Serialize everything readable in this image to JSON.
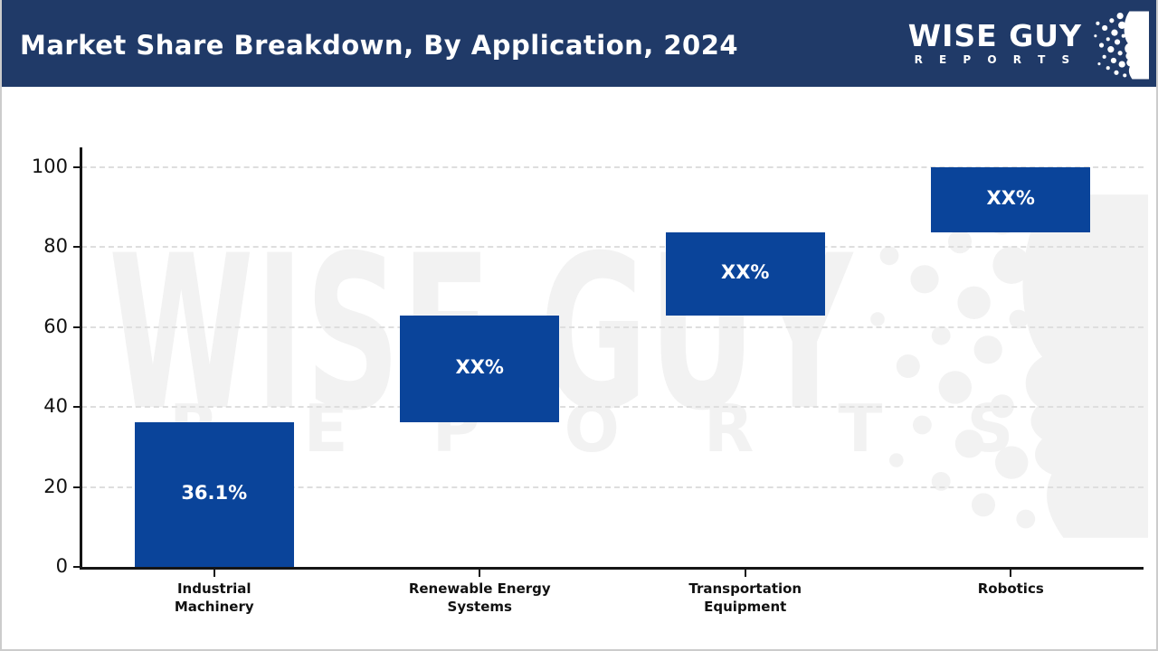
{
  "header": {
    "title": "Market Share Breakdown, By Application, 2024",
    "logo_line1": "WISE GUY",
    "logo_line2": "R E P O R T S"
  },
  "watermark": {
    "line1": "WISE GUY",
    "line2": "R E P O R T S"
  },
  "colors": {
    "header_bg": "#203a68",
    "bar_blue": "#0a449a",
    "grid_gray": "#dedede",
    "axis_black": "#151515",
    "watermark_gray": "#f2f2f2",
    "value_label_white": "#ffffff"
  },
  "chart_data": {
    "type": "bar",
    "variant": "waterfall",
    "title": "Market Share Breakdown, By Application, 2024",
    "categories": [
      [
        "Industrial",
        "Machinery"
      ],
      [
        "Renewable Energy",
        "Systems"
      ],
      [
        "Transportation",
        "Equipment"
      ],
      [
        "Robotics"
      ]
    ],
    "segments": [
      {
        "category": "Industrial Machinery",
        "start": 0,
        "end": 36.1,
        "value": 36.1,
        "label": "36.1%"
      },
      {
        "category": "Renewable Energy Systems",
        "start": 36.1,
        "end": 63.0,
        "value": 26.9,
        "label": "XX%"
      },
      {
        "category": "Transportation Equipment",
        "start": 63.0,
        "end": 83.8,
        "value": 20.8,
        "label": "XX%"
      },
      {
        "category": "Robotics",
        "start": 83.8,
        "end": 100.0,
        "value": 16.2,
        "label": "XX%"
      }
    ],
    "yticks": [
      0,
      20,
      40,
      60,
      80,
      100
    ],
    "ylim": [
      0,
      105
    ],
    "xlabel": "",
    "ylabel": "",
    "grid": "horizontal-dashed",
    "legend": "none",
    "bar_color": "#0a449a",
    "value_label_color": "#ffffff"
  }
}
